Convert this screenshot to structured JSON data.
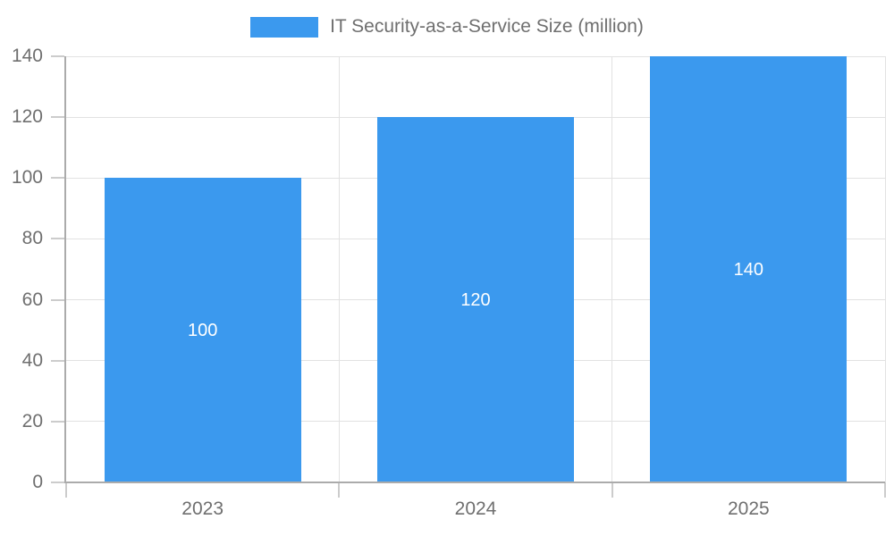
{
  "chart_data": {
    "type": "bar",
    "title": "IT Security-as-a-Service Size (million)",
    "legend": {
      "position": "top",
      "label": "IT Security-as-a-Service Size (million)"
    },
    "categories": [
      "2023",
      "2024",
      "2025"
    ],
    "series": [
      {
        "name": "IT Security-as-a-Service Size (million)",
        "values": [
          100,
          120,
          140
        ]
      }
    ],
    "data_labels": [
      "100",
      "120",
      "140"
    ],
    "xlabel": "",
    "ylabel": "",
    "ylim": [
      0,
      140
    ],
    "yticks": [
      0,
      20,
      40,
      60,
      80,
      100,
      120,
      140
    ],
    "grid": true
  },
  "colors": {
    "bar": "#3B99EE",
    "grid": "#e2e2e2",
    "axis": "#ababab",
    "tick": "#cccccc",
    "text": "#6f6f6f",
    "data_label": "#ffffff",
    "background": "#ffffff"
  }
}
